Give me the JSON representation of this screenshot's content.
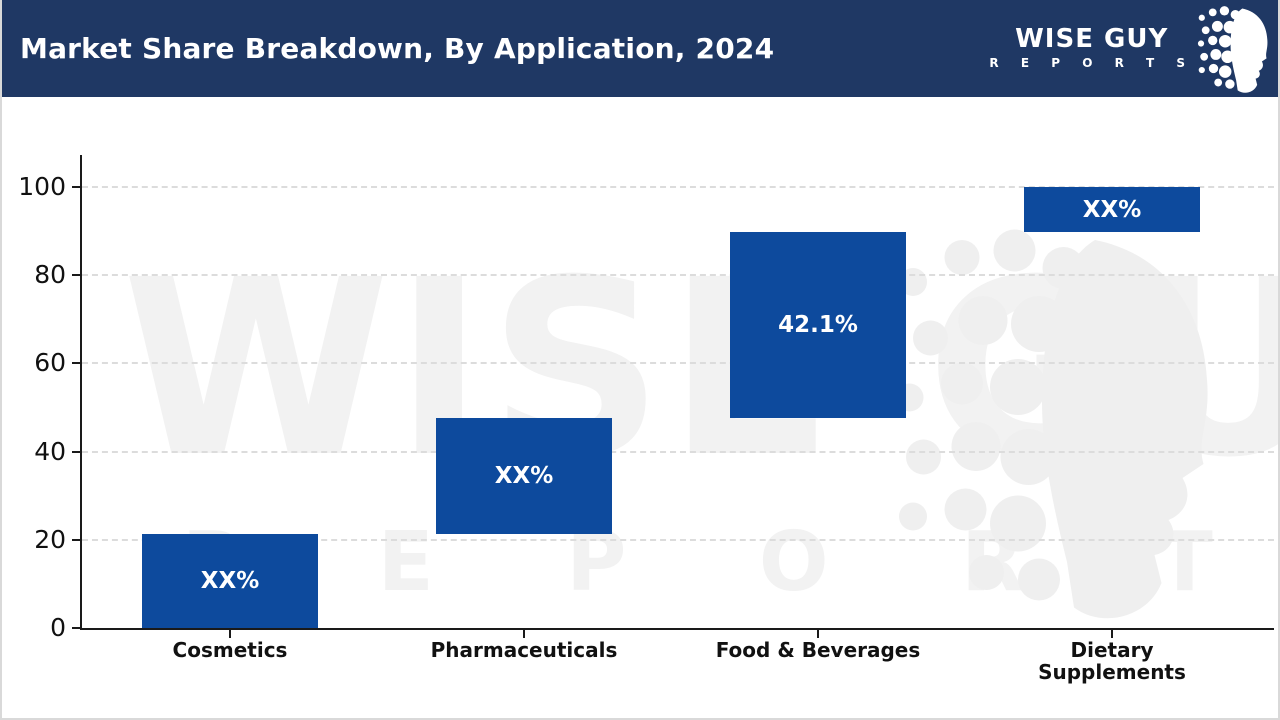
{
  "header": {
    "title": "Market Share Breakdown, By Application, 2024",
    "logo": {
      "line1": "WISE GUY",
      "line2": "R E P O R T S"
    }
  },
  "watermark": {
    "line1": "WISE GUY",
    "line2": "R E P O R T S"
  },
  "chart_data": {
    "type": "bar",
    "subtype": "waterfall",
    "title": "Market Share Breakdown, By Application, 2024",
    "categories": [
      "Cosmetics",
      "Pharmaceuticals",
      "Food & Beverages",
      "Dietary Supplements"
    ],
    "x_tick_labels": [
      "Cosmetics",
      "Pharmaceuticals",
      "Food & Beverages",
      "Dietary\nSupplements"
    ],
    "segments": [
      {
        "category": "Cosmetics",
        "start": 0,
        "end": 21.3,
        "value": 21.3,
        "value_label": "XX%"
      },
      {
        "category": "Pharmaceuticals",
        "start": 21.3,
        "end": 47.6,
        "value": 26.3,
        "value_label": "XX%"
      },
      {
        "category": "Food & Beverages",
        "start": 47.6,
        "end": 89.7,
        "value": 42.1,
        "value_label": "42.1%"
      },
      {
        "category": "Dietary Supplements",
        "start": 89.7,
        "end": 100,
        "value": 10.3,
        "value_label": "XX%"
      }
    ],
    "ylim": [
      0,
      100
    ],
    "yticks": [
      0,
      20,
      40,
      60,
      80,
      100
    ],
    "xlabel": "",
    "ylabel": "",
    "grid": "horizontal-dashed",
    "legend": "none",
    "bar_color": "#0d4a9d"
  },
  "colors": {
    "header_bg": "#1f3864",
    "bar": "#0d4a9d",
    "watermark": "#f2f2f2",
    "grid": "#dcdcdc",
    "axis": "#1a1a1a"
  }
}
